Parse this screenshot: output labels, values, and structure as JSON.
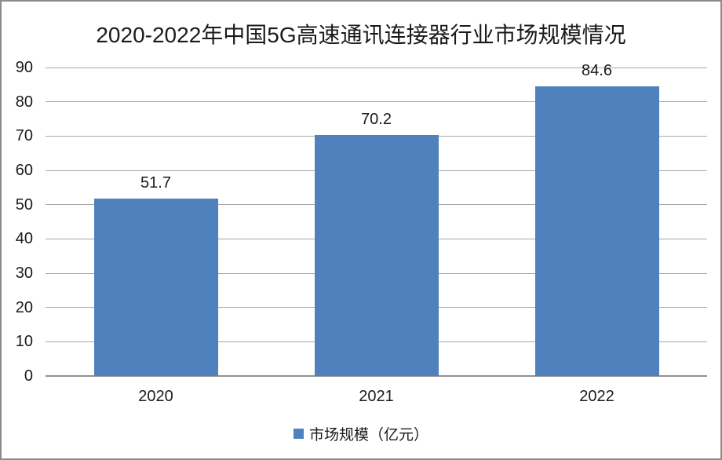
{
  "frame": {
    "background": "#FFFFFF",
    "border_color": "#8C8C8C"
  },
  "chart_data": {
    "type": "bar",
    "title": "2020-2022年中国5G高速通讯连接器行业市场规模情况",
    "categories": [
      "2020",
      "2021",
      "2022"
    ],
    "values": [
      51.7,
      70.2,
      84.6
    ],
    "series": [
      {
        "name": "市场规模（亿元）",
        "values": [
          51.7,
          70.2,
          84.6
        ]
      }
    ],
    "xlabel": "",
    "ylabel": "",
    "ylim": [
      0,
      90
    ],
    "ytick_step": 10,
    "yticks": [
      0,
      10,
      20,
      30,
      40,
      50,
      60,
      70,
      80,
      90
    ],
    "grid": true,
    "legend_position": "bottom-center",
    "bar_color": "#4F81BD",
    "gridline_color": "#A8A8A8",
    "axis_line_color": "#909090",
    "text_color": "#1A1A1A"
  }
}
